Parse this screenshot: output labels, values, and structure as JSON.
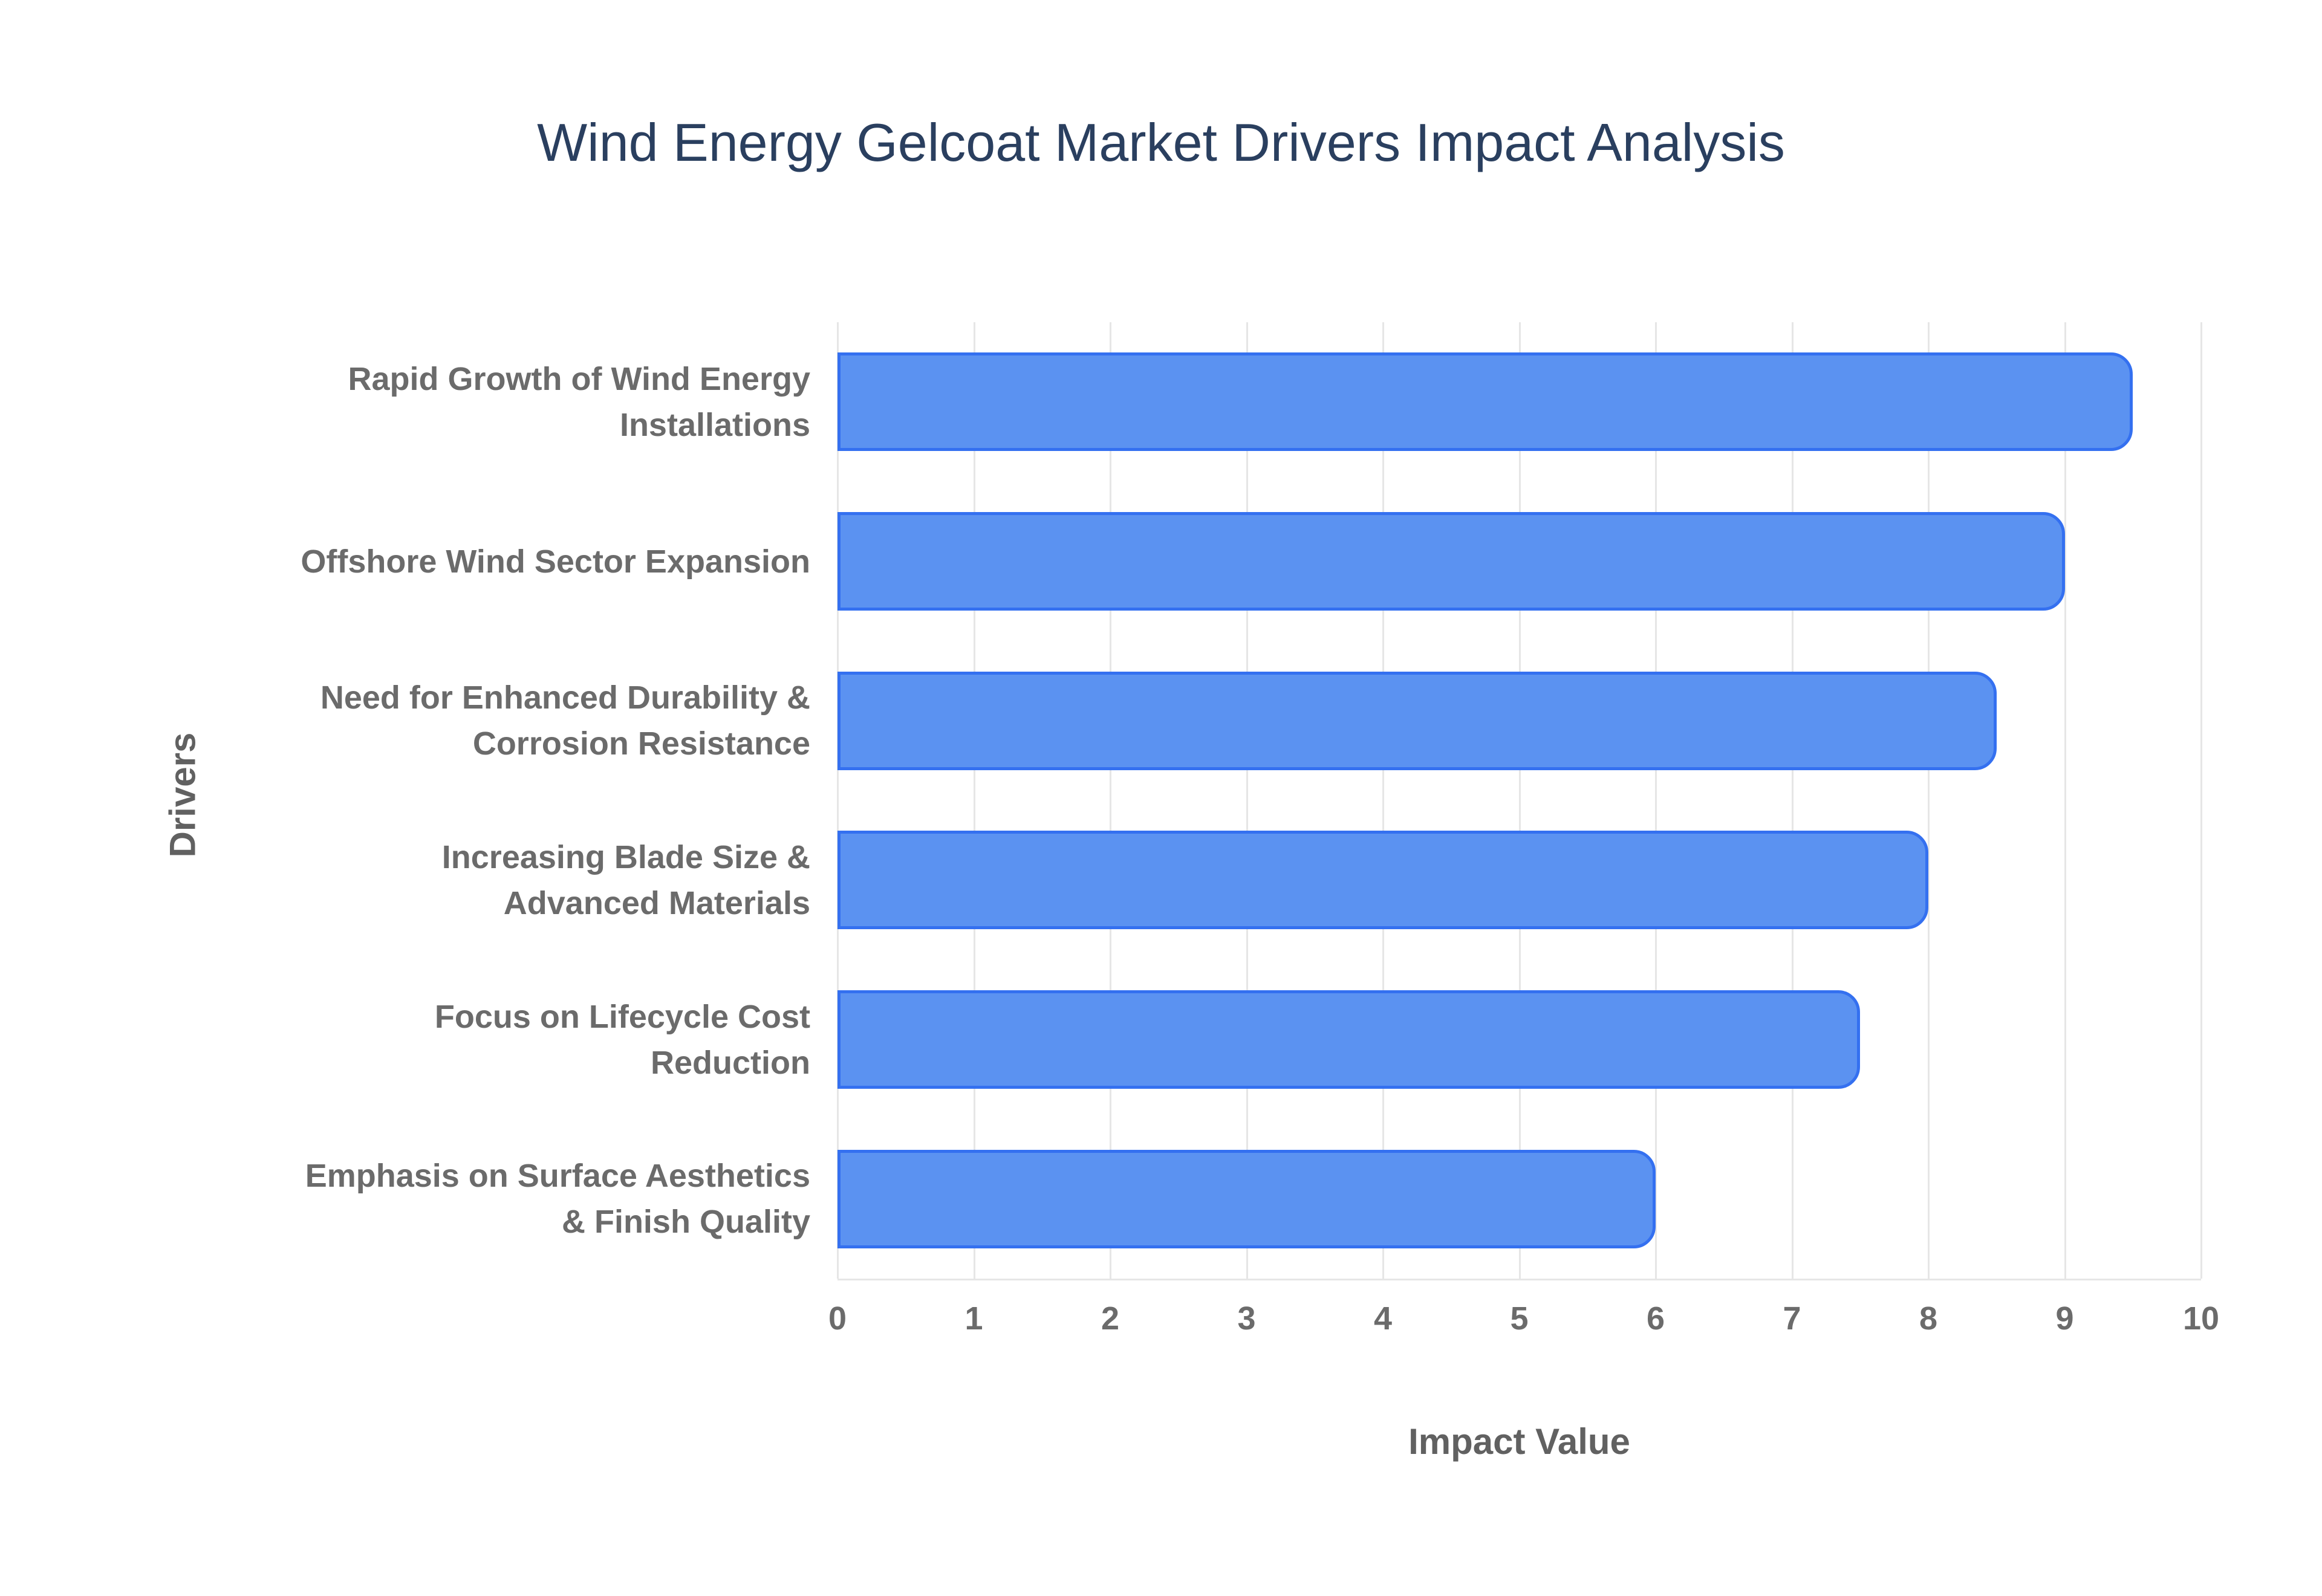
{
  "chart_data": {
    "type": "bar",
    "orientation": "horizontal",
    "title": "Wind Energy Gelcoat Market Drivers Impact Analysis",
    "categories": [
      "Rapid Growth of Wind Energy Installations",
      "Offshore Wind Sector Expansion",
      "Need for Enhanced Durability & Corrosion Resistance",
      "Increasing Blade Size & Advanced Materials",
      "Focus on Lifecycle Cost Reduction",
      "Emphasis on Surface Aesthetics & Finish Quality"
    ],
    "category_lines": [
      [
        "Rapid Growth of Wind Energy",
        "Installations"
      ],
      [
        "Offshore Wind Sector Expansion"
      ],
      [
        "Need for Enhanced Durability &",
        "Corrosion Resistance"
      ],
      [
        "Increasing Blade Size &",
        "Advanced Materials"
      ],
      [
        "Focus on Lifecycle Cost",
        "Reduction"
      ],
      [
        "Emphasis on Surface Aesthetics",
        "& Finish Quality"
      ]
    ],
    "values": [
      9.5,
      9,
      8.5,
      8,
      7.5,
      6
    ],
    "xlabel": "Impact Value",
    "ylabel": "Drivers",
    "xlim": [
      0,
      10
    ],
    "xticks": [
      0,
      1,
      2,
      3,
      4,
      5,
      6,
      7,
      8,
      9,
      10
    ],
    "grid": true,
    "legend": false,
    "colors": {
      "bar_fill": "#5b92f1",
      "bar_border": "#3470f0",
      "gridline": "#e6e6e6",
      "title_text": "#2a3f5f",
      "tick_text": "#6b6b6b",
      "category_text": "#6b6b6b",
      "axis_title_text": "#616161",
      "background": "#ffffff"
    }
  }
}
